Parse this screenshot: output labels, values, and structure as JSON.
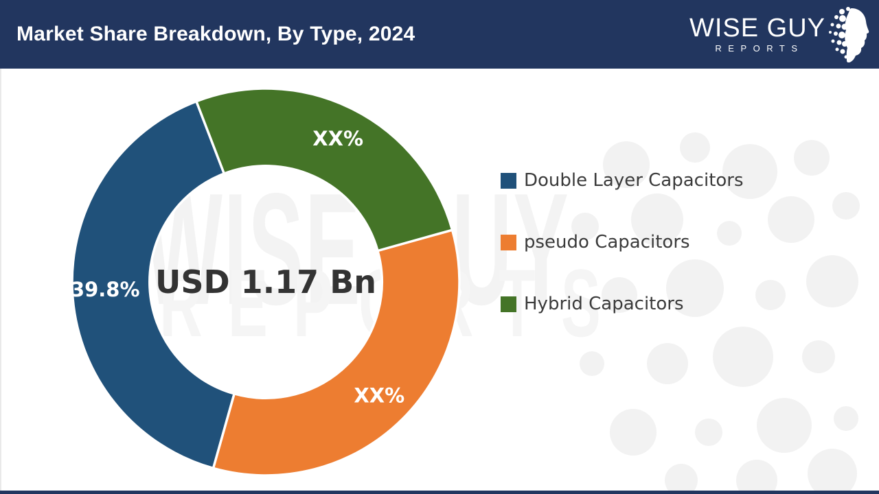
{
  "header": {
    "title": "Market Share Breakdown, By Type, 2024",
    "logo": {
      "line1": "WISE GUY",
      "line2": "REPORTS"
    }
  },
  "watermark": {
    "line1": "WISE GUY",
    "line2": "REPORTS"
  },
  "chart_data": {
    "type": "pie",
    "subtype": "donut",
    "title": "Market Share Breakdown, By Type, 2024",
    "center_label": "USD 1.17 Bn",
    "start_angle_deg": 111,
    "direction": "counterclockwise",
    "inner_radius_ratio": 0.6,
    "legend_position": "right",
    "grid": false,
    "series": [
      {
        "name": "Double Layer Capacitors",
        "slice_label": "39.8%",
        "value_pct": 39.8,
        "value_shown": true,
        "color": "#20517a"
      },
      {
        "name": "pseudo Capacitors",
        "slice_label": "XX%",
        "value_pct": 33.7,
        "value_shown": false,
        "color": "#ed7d31"
      },
      {
        "name": "Hybrid Capacitors",
        "slice_label": "XX%",
        "value_pct": 26.5,
        "value_shown": false,
        "color": "#447427"
      }
    ]
  }
}
